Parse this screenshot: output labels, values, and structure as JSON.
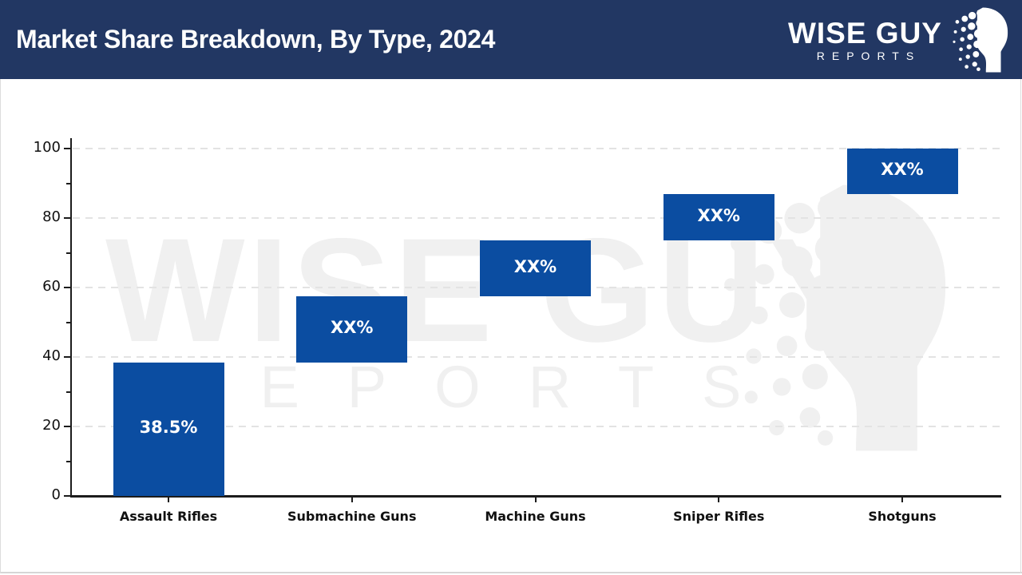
{
  "header": {
    "title": "Market Share Breakdown, By Type, 2024",
    "logo_line1": "WISE GUY",
    "logo_line2": "REPORTS"
  },
  "watermark": {
    "line1": "WISE GUY",
    "line2": "REPORTS"
  },
  "chart_data": {
    "type": "bar",
    "subtype": "waterfall",
    "title": "Market Share Breakdown, By Type, 2024",
    "categories": [
      "Assault Rifles",
      "Submachine Guns",
      "Machine Guns",
      "Sniper Rifles",
      "Shotguns"
    ],
    "series": [
      {
        "name": "Market Share",
        "segments": [
          {
            "start": 0,
            "end": 38.5
          },
          {
            "start": 38.5,
            "end": 57.5
          },
          {
            "start": 57.5,
            "end": 73.5
          },
          {
            "start": 73.5,
            "end": 87
          },
          {
            "start": 87,
            "end": 100
          }
        ],
        "values": [
          38.5,
          19,
          16,
          13.5,
          13
        ]
      }
    ],
    "bar_labels": [
      "38.5%",
      "XX%",
      "XX%",
      "XX%",
      "XX%"
    ],
    "xlabel": "",
    "ylabel": "",
    "ylim": [
      0,
      103
    ],
    "y_ticks": [
      0,
      20,
      40,
      60,
      80,
      100
    ],
    "y_minor_ticks": [
      10,
      30,
      50,
      70,
      90
    ],
    "legend": "none",
    "grid": "horizontal-dashed",
    "colors": {
      "bar": "#0b4da1",
      "bar_label": "#ffffff",
      "grid": "#e3e3e3",
      "axis": "#1c1c1c",
      "tick_text": "#111111",
      "header_bg": "#223763",
      "watermark": "#f0f0f0"
    }
  }
}
